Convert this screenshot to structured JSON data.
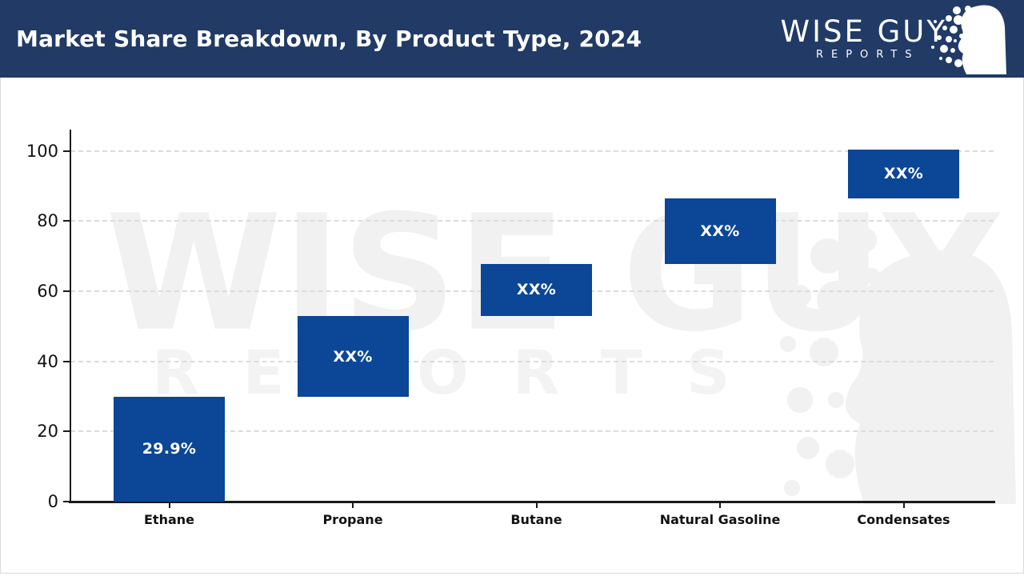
{
  "header": {
    "title": "Market Share Breakdown, By Product Type, 2024",
    "background_color": "#213a66",
    "logo": {
      "primary": "WISE GUY",
      "secondary": "REPORTS"
    }
  },
  "watermark": {
    "primary": "WISE GUY",
    "secondary": "REPORTS"
  },
  "chart_data": {
    "type": "bar",
    "subtype": "waterfall",
    "title": "Market Share Breakdown, By Product Type, 2024",
    "categories": [
      "Ethane",
      "Propane",
      "Butane",
      "Natural Gasoline",
      "Condensates"
    ],
    "segments": [
      {
        "category": "Ethane",
        "start": 0,
        "end": 29.9,
        "label": "29.9%"
      },
      {
        "category": "Propane",
        "start": 29.9,
        "end": 52.9,
        "label": "XX%"
      },
      {
        "category": "Butane",
        "start": 52.9,
        "end": 67.8,
        "label": "XX%"
      },
      {
        "category": "Natural Gasoline",
        "start": 67.8,
        "end": 86.5,
        "label": "XX%"
      },
      {
        "category": "Condensates",
        "start": 86.5,
        "end": 100.5,
        "label": "XX%"
      }
    ],
    "yticks": [
      0,
      20,
      40,
      60,
      80,
      100
    ],
    "ylim": [
      0,
      106
    ],
    "xlabel": "",
    "ylabel": "",
    "bar_color": "#0b4697",
    "grid": "dashed-horizontal",
    "legend": "none"
  }
}
